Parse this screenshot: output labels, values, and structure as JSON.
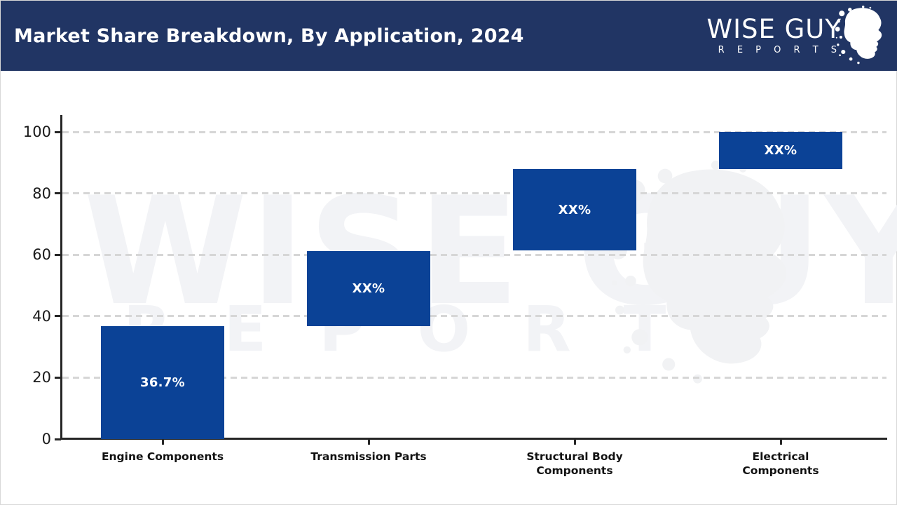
{
  "header": {
    "title": "Market Share Breakdown, By Application, 2024",
    "brand": {
      "name": "WISE GUY",
      "tagline": "R E P O R T S"
    }
  },
  "watermark": {
    "line1": "WISE GUY",
    "line2": "R E P O R T S"
  },
  "colors": {
    "header_bg": "#213564",
    "bar_blue": "#0B4296",
    "axis_dark": "#262626",
    "grid_gray": "#d6d6d6",
    "watermark_gray": "#f2f3f6"
  },
  "chart_data": {
    "type": "bar",
    "variant": "waterfall-stacked-segments",
    "title": "Market Share Breakdown, By Application, 2024",
    "xlabel": "",
    "ylabel": "",
    "ylim": [
      0,
      100
    ],
    "yticks": [
      0,
      20,
      40,
      60,
      80,
      100
    ],
    "grid": "horizontal-dashed",
    "legend": "none",
    "categories": [
      "Engine Components",
      "Transmission Parts",
      "Structural Body Components",
      "Electrical Components"
    ],
    "bars": [
      {
        "category": "Engine Components",
        "start": 0,
        "end": 36.7,
        "label": "36.7%"
      },
      {
        "category": "Transmission Parts",
        "start": 36.7,
        "end": 61.3,
        "label": "XX%"
      },
      {
        "category": "Structural Body Components",
        "start": 61.3,
        "end": 87.8,
        "label": "XX%"
      },
      {
        "category": "Electrical Components",
        "start": 87.8,
        "end": 100,
        "label": "XX%"
      }
    ],
    "bar_color": "#0B4296"
  }
}
